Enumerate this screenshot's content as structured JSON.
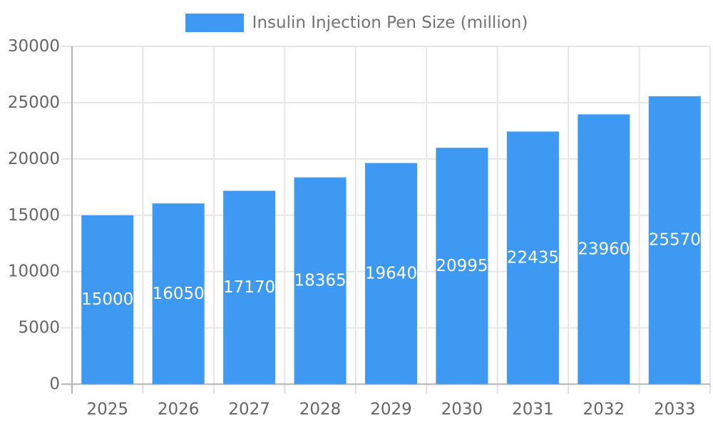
{
  "chart_data": {
    "type": "bar",
    "title": "Insulin Injection Pen Size (million)",
    "legend_entries": [
      "Insulin Injection Pen Size (million)"
    ],
    "legend_position": "top-center",
    "categories": [
      "2025",
      "2026",
      "2027",
      "2028",
      "2029",
      "2030",
      "2031",
      "2032",
      "2033"
    ],
    "values": [
      15000,
      16050,
      17170,
      18365,
      19640,
      20995,
      22435,
      23960,
      25570
    ],
    "xlabel": "",
    "ylabel": "",
    "ylim": [
      0,
      30000
    ],
    "yticks": [
      0,
      5000,
      10000,
      15000,
      20000,
      25000,
      30000
    ],
    "grid": true,
    "bar_label_position": "center-of-bar",
    "bar_label_color": "#ffffff",
    "colors": {
      "bar": "#3E99F2",
      "grid": "#e6e6e6",
      "tick": "#e0e0e0",
      "axis": "#b3b3b3",
      "axis_label": "#666666",
      "legend_text": "#737373",
      "background": "#ffffff"
    }
  }
}
